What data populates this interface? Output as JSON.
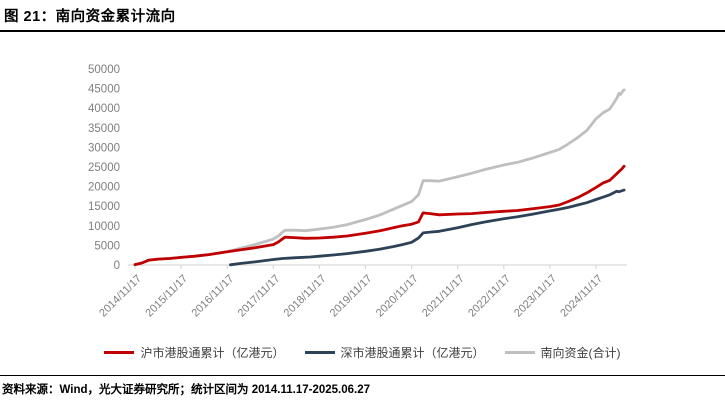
{
  "title": "图 21：南向资金累计流向",
  "source_note": "资料来源：Wind，光大证券研究所；统计区间为 2014.11.17-2025.06.27",
  "colors": {
    "sh_connect_red": "#C00000",
    "sz_connect_navy": "#2E4257",
    "total_gray": "#BFBFBF",
    "axis_line": "#D9D9D9",
    "tick_label_gray": "#7F7F7F",
    "rule_black": "#000000"
  },
  "chart_data": {
    "type": "line",
    "title": "南向资金累计流向",
    "xlabel": "",
    "ylabel": "亿港元",
    "ylim": [
      0,
      50000
    ],
    "y_ticks": [
      0,
      5000,
      10000,
      15000,
      20000,
      25000,
      30000,
      35000,
      40000,
      45000,
      50000
    ],
    "x_tick_labels": [
      "2014/11/17",
      "2015/11/17",
      "2016/11/17",
      "2017/11/17",
      "2018/11/17",
      "2019/11/17",
      "2020/11/17",
      "2021/11/17",
      "2022/11/17",
      "2023/11/17",
      "2024/11/17"
    ],
    "x_unit": "years_since_2014_11_17",
    "x_range": [
      0,
      10.61
    ],
    "grid": false,
    "legend_position": "bottom",
    "series": [
      {
        "name": "沪市港股通累计（亿港元）",
        "color": "#C00000",
        "points": [
          [
            0,
            100
          ],
          [
            0.15,
            500
          ],
          [
            0.3,
            1250
          ],
          [
            0.5,
            1500
          ],
          [
            0.75,
            1650
          ],
          [
            1,
            1950
          ],
          [
            1.3,
            2250
          ],
          [
            1.6,
            2650
          ],
          [
            2,
            3400
          ],
          [
            2.3,
            3900
          ],
          [
            2.6,
            4400
          ],
          [
            3,
            5200
          ],
          [
            3.1,
            5800
          ],
          [
            3.25,
            7100
          ],
          [
            3.45,
            7000
          ],
          [
            3.7,
            6800
          ],
          [
            4,
            6900
          ],
          [
            4.3,
            7100
          ],
          [
            4.6,
            7400
          ],
          [
            5,
            8100
          ],
          [
            5.3,
            8700
          ],
          [
            5.6,
            9500
          ],
          [
            5.8,
            10000
          ],
          [
            6,
            10400
          ],
          [
            6.15,
            11000
          ],
          [
            6.25,
            13300
          ],
          [
            6.4,
            13100
          ],
          [
            6.6,
            12800
          ],
          [
            7,
            13000
          ],
          [
            7.3,
            13100
          ],
          [
            7.6,
            13400
          ],
          [
            8,
            13700
          ],
          [
            8.3,
            13900
          ],
          [
            8.6,
            14300
          ],
          [
            9,
            14900
          ],
          [
            9.2,
            15300
          ],
          [
            9.4,
            16200
          ],
          [
            9.6,
            17200
          ],
          [
            9.8,
            18400
          ],
          [
            10,
            19800
          ],
          [
            10.15,
            20900
          ],
          [
            10.3,
            21600
          ],
          [
            10.45,
            23300
          ],
          [
            10.55,
            24400
          ],
          [
            10.61,
            25200
          ]
        ]
      },
      {
        "name": "深市港股通累计（亿港元）",
        "color": "#2E4257",
        "points": [
          [
            2.07,
            50
          ],
          [
            2.3,
            400
          ],
          [
            2.6,
            800
          ],
          [
            3,
            1400
          ],
          [
            3.2,
            1650
          ],
          [
            3.5,
            1850
          ],
          [
            3.8,
            2050
          ],
          [
            4,
            2250
          ],
          [
            4.3,
            2550
          ],
          [
            4.6,
            2900
          ],
          [
            5,
            3500
          ],
          [
            5.3,
            4000
          ],
          [
            5.6,
            4700
          ],
          [
            5.8,
            5200
          ],
          [
            6,
            5800
          ],
          [
            6.15,
            6900
          ],
          [
            6.25,
            8200
          ],
          [
            6.4,
            8400
          ],
          [
            6.6,
            8600
          ],
          [
            7,
            9500
          ],
          [
            7.3,
            10300
          ],
          [
            7.6,
            11000
          ],
          [
            8,
            11800
          ],
          [
            8.3,
            12300
          ],
          [
            8.6,
            12900
          ],
          [
            9,
            13800
          ],
          [
            9.2,
            14200
          ],
          [
            9.4,
            14700
          ],
          [
            9.6,
            15300
          ],
          [
            9.8,
            15900
          ],
          [
            10,
            16700
          ],
          [
            10.15,
            17300
          ],
          [
            10.3,
            17900
          ],
          [
            10.45,
            18800
          ],
          [
            10.5,
            18700
          ],
          [
            10.61,
            19100
          ]
        ]
      },
      {
        "name": "南向资金(合计)",
        "color": "#BFBFBF",
        "points": [
          [
            0,
            100
          ],
          [
            0.15,
            500
          ],
          [
            0.3,
            1250
          ],
          [
            0.5,
            1500
          ],
          [
            0.75,
            1650
          ],
          [
            1,
            1950
          ],
          [
            1.3,
            2250
          ],
          [
            1.6,
            2650
          ],
          [
            2,
            3400
          ],
          [
            2.3,
            4300
          ],
          [
            2.6,
            5200
          ],
          [
            3,
            6600
          ],
          [
            3.1,
            7350
          ],
          [
            3.25,
            8850
          ],
          [
            3.45,
            8900
          ],
          [
            3.7,
            8750
          ],
          [
            4,
            9150
          ],
          [
            4.3,
            9650
          ],
          [
            4.6,
            10300
          ],
          [
            5,
            11600
          ],
          [
            5.3,
            12700
          ],
          [
            5.6,
            14200
          ],
          [
            5.8,
            15200
          ],
          [
            6,
            16200
          ],
          [
            6.15,
            17900
          ],
          [
            6.25,
            21500
          ],
          [
            6.4,
            21500
          ],
          [
            6.6,
            21400
          ],
          [
            7,
            22500
          ],
          [
            7.3,
            23400
          ],
          [
            7.6,
            24400
          ],
          [
            8,
            25500
          ],
          [
            8.3,
            26200
          ],
          [
            8.6,
            27200
          ],
          [
            9,
            28700
          ],
          [
            9.2,
            29500
          ],
          [
            9.4,
            30900
          ],
          [
            9.6,
            32500
          ],
          [
            9.8,
            34300
          ],
          [
            10,
            37300
          ],
          [
            10.15,
            38800
          ],
          [
            10.3,
            39800
          ],
          [
            10.45,
            42500
          ],
          [
            10.5,
            43800
          ],
          [
            10.53,
            43500
          ],
          [
            10.58,
            44300
          ],
          [
            10.61,
            44700
          ]
        ]
      }
    ]
  }
}
